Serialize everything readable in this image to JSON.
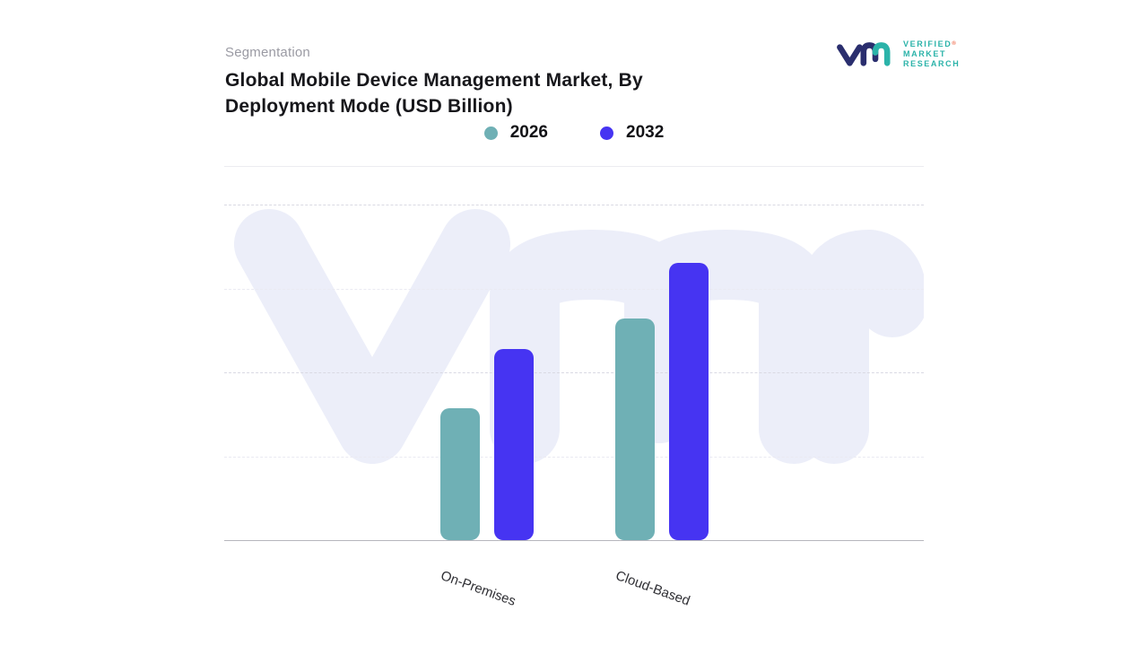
{
  "header": {
    "eyebrow": "Segmentation",
    "title_line1": "Global Mobile Device Management Market, By",
    "title_line2": "Deployment Mode (USD Billion)"
  },
  "brand": {
    "name_lines": [
      "VERIFIED",
      "MARKET",
      "RESEARCH"
    ],
    "registered_mark": "®",
    "monogram_navy": "#2a2e6e",
    "monogram_teal": "#2bb3a9",
    "text_color": "#2bb3a9"
  },
  "chart_data": {
    "type": "bar",
    "title": "Global Mobile Device Management Market, By Deployment Mode (USD Billion)",
    "categories": [
      "On-Premises",
      "Cloud-Based"
    ],
    "series": [
      {
        "name": "2026",
        "color": "#6fb0b5",
        "values": [
          4.7,
          7.9
        ]
      },
      {
        "name": "2032",
        "color": "#4634f2",
        "values": [
          6.8,
          9.9
        ]
      }
    ],
    "xlabel": "",
    "ylabel": "",
    "ylim": [
      0,
      12
    ],
    "y_axis_labels_visible": false,
    "grid": "horizontal-dashed",
    "legend_position": "top-center",
    "unit": "USD Billion"
  }
}
